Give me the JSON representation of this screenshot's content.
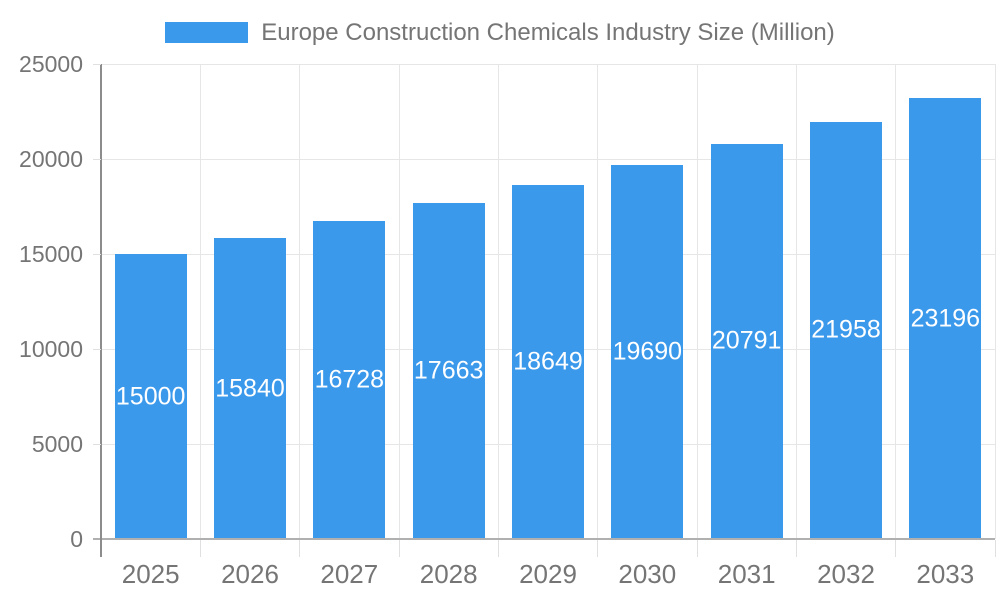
{
  "chart_data": {
    "type": "bar",
    "title": "Europe Construction Chemicals Industry Size (Million)",
    "categories": [
      "2025",
      "2026",
      "2027",
      "2028",
      "2029",
      "2030",
      "2031",
      "2032",
      "2033"
    ],
    "values": [
      15000,
      15840,
      16728,
      17663,
      18649,
      19690,
      20791,
      21958,
      23196
    ],
    "xlabel": "",
    "ylabel": "",
    "ylim": [
      0,
      25000
    ],
    "yticks": [
      0,
      5000,
      10000,
      15000,
      20000,
      25000
    ],
    "grid": true,
    "legend_position": "top",
    "value_label_position": "inside-center",
    "colors": {
      "bar": "#3B99EC",
      "value_label": "#FFFFFF",
      "axis_text": "#757575",
      "legend_text": "#757575",
      "grid_line": "#E6E6E6",
      "tick_line": "#E0E0E0",
      "axis_line": "#8C8C8C",
      "baseline": "#B0B0B0",
      "background": "#FFFFFF"
    }
  }
}
